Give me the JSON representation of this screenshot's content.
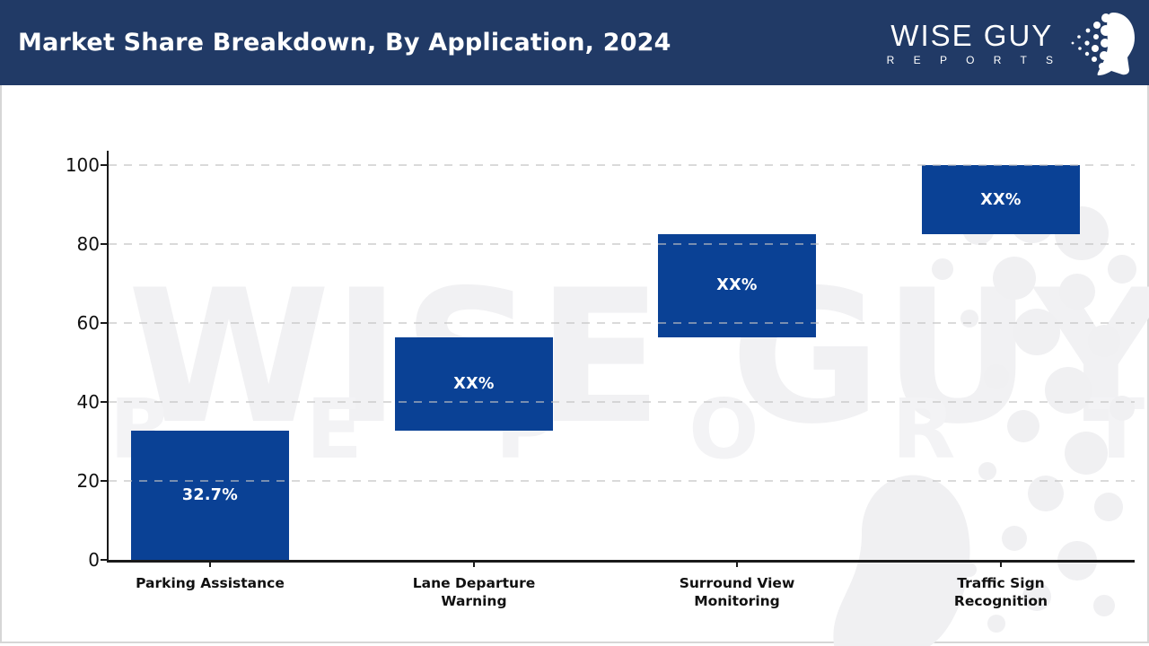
{
  "header": {
    "title": "Market Share Breakdown, By Application, 2024",
    "logo": {
      "line1": "WISE GUY",
      "line2": "R E P O R T S"
    }
  },
  "chart_data": {
    "type": "bar",
    "subtype": "waterfall-segments",
    "title": "Market Share Breakdown, By Application, 2024",
    "categories": [
      "Parking Assistance",
      "Lane Departure Warning",
      "Surround View Monitoring",
      "Traffic Sign Recognition"
    ],
    "segments": [
      {
        "category": "Parking Assistance",
        "start": 0,
        "end": 32.7,
        "label": "32.7%"
      },
      {
        "category": "Lane Departure Warning",
        "start": 32.7,
        "end": 56.4,
        "label": "XX%"
      },
      {
        "category": "Surround View Monitoring",
        "start": 56.4,
        "end": 82.5,
        "label": "XX%"
      },
      {
        "category": "Traffic Sign Recognition",
        "start": 82.5,
        "end": 100,
        "label": "XX%"
      }
    ],
    "y_ticks": [
      0,
      20,
      40,
      60,
      80,
      100
    ],
    "ylim": [
      0,
      104
    ],
    "xlabel": "",
    "ylabel": "",
    "grid": "horizontal-dashed",
    "legend": "none",
    "bar_color": "#0a4195",
    "bar_label_color": "#ffffff",
    "watermark": {
      "line1": "WISE GUY",
      "line2": "R E P O R T S"
    }
  },
  "colors": {
    "header_bg": "#213a66",
    "header_text": "#ffffff",
    "axis": "#1a1a1a",
    "gridline": "#c2c2c2",
    "card_border": "#d6d6d6"
  }
}
